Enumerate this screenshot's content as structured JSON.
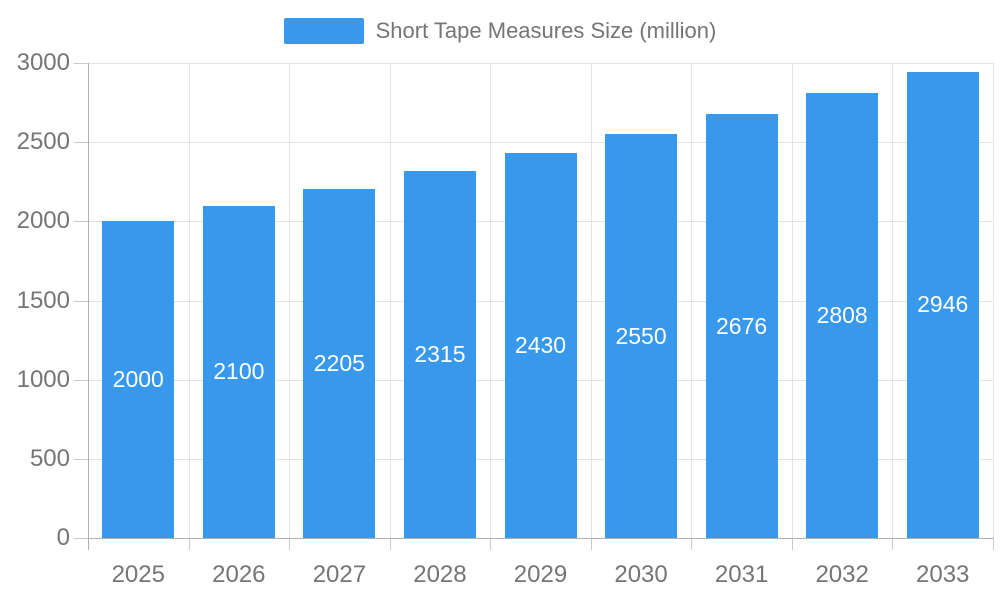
{
  "chart_data": {
    "type": "bar",
    "title": "Short Tape Measures Size (million)",
    "series_name": "Short Tape Measures Size (million)",
    "categories": [
      "2025",
      "2026",
      "2027",
      "2028",
      "2029",
      "2030",
      "2031",
      "2032",
      "2033"
    ],
    "values": [
      2000,
      2100,
      2205,
      2315,
      2430,
      2550,
      2676,
      2808,
      2946
    ],
    "bar_labels": [
      "2000",
      "2100",
      "2205",
      "2315",
      "2430",
      "2550",
      "2676",
      "2808",
      "2946"
    ],
    "xlabel": "",
    "ylabel": "",
    "ylim": [
      0,
      3000
    ],
    "yticks": [
      0,
      500,
      1000,
      1500,
      2000,
      2500,
      3000
    ],
    "grid": true,
    "legend_position": "top-center",
    "colors": {
      "bar": "#3898ec",
      "bar_value_text": "#ffffff",
      "axis_text": "#757575",
      "legend_text": "#757575",
      "gridline": "#e3e3e3",
      "axis_line": "#b0b0b0",
      "tick": "#c9c9c9",
      "background": "#ffffff"
    }
  }
}
